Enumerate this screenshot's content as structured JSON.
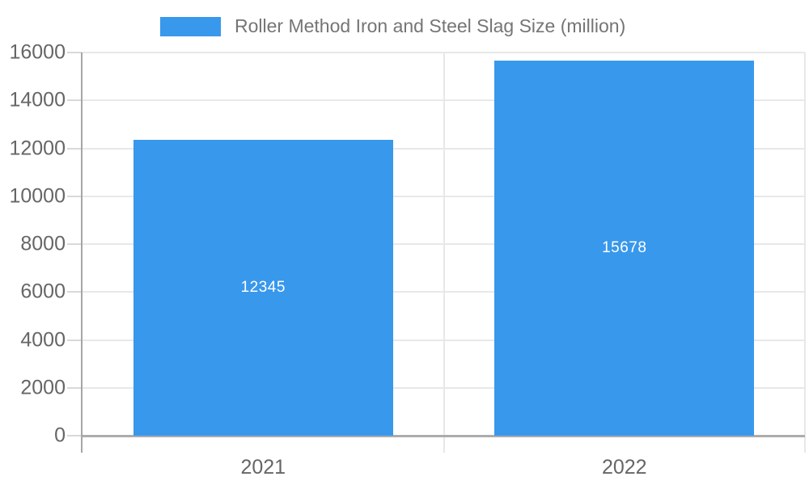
{
  "legend": {
    "label": "Roller Method Iron and Steel Slag Size (million)",
    "swatch_color": "#3898EC"
  },
  "chart_data": {
    "type": "bar",
    "title": "Roller Method Iron and Steel Slag Size (million)",
    "categories": [
      "2021",
      "2022"
    ],
    "values": [
      12345,
      15678
    ],
    "xlabel": "",
    "ylabel": "",
    "ylim": [
      0,
      16000
    ],
    "ytick_step": 2000,
    "grid": true,
    "legend_position": "top",
    "bar_width_fraction": 0.72,
    "bar_color": "#3898EC",
    "value_label_color": "#FFFFFF",
    "axis_label_color": "#666666",
    "legend_text_color": "#757575",
    "grid_color": "#E8E8E8",
    "axis_line_color": "#A6A6A6",
    "baseline_color": "#ACACAC"
  }
}
